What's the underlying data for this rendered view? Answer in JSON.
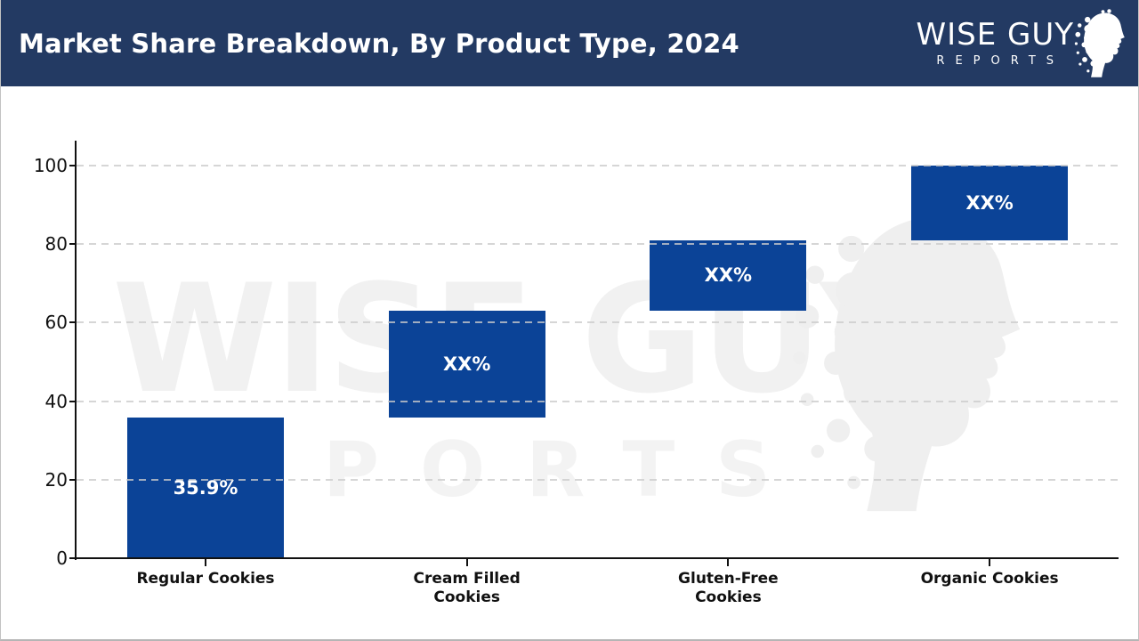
{
  "header": {
    "title": "Market Share Breakdown, By Product Type, 2024",
    "bg_color": "#233a63",
    "logo": {
      "wordmark": "WISE GUY",
      "subtext": "REPORTS"
    }
  },
  "watermark": {
    "line1": "WISE GUY",
    "line2": "REPORTS"
  },
  "chart_data": {
    "type": "bar",
    "subtype": "waterfall",
    "title": "Market Share Breakdown, By Product Type, 2024",
    "categories": [
      "Regular Cookies",
      "Cream Filled\nCookies",
      "Gluten-Free\nCookies",
      "Organic Cookies"
    ],
    "bars": [
      {
        "category": "Regular Cookies",
        "start": 0,
        "end": 35.9,
        "value_label": "35.9%"
      },
      {
        "category": "Cream Filled Cookies",
        "start": 35.9,
        "end": 63,
        "value_label": "XX%"
      },
      {
        "category": "Gluten-Free Cookies",
        "start": 63,
        "end": 81,
        "value_label": "XX%"
      },
      {
        "category": "Organic Cookies",
        "start": 81,
        "end": 100,
        "value_label": "XX%"
      }
    ],
    "bar_color": "#0b4397",
    "value_label_color": "#ffffff",
    "ylim": [
      0,
      100
    ],
    "y_ticks": [
      0,
      20,
      40,
      60,
      80,
      100
    ],
    "y_tick_labels": [
      "0",
      "20",
      "40",
      "60",
      "80",
      "100"
    ],
    "xlabel": "",
    "ylabel": "",
    "grid": "horizontal-dashed",
    "legend": "none"
  }
}
